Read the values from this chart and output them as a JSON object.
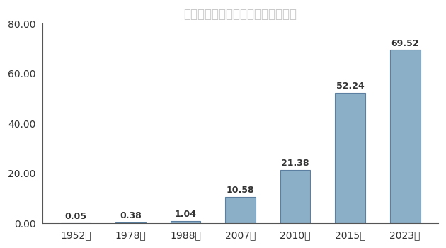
{
  "categories": [
    "1952年",
    "1978年",
    "1988年",
    "2007年",
    "2010年",
    "2015年",
    "2023年"
  ],
  "values": [
    0.05,
    0.38,
    1.04,
    10.58,
    21.38,
    52.24,
    69.52
  ],
  "bar_color": "#8cafc8",
  "bar_edge_color": "#5a7fa0",
  "title": "我国律师队伍规模发展历程（万人）",
  "title_color": "#c8c8c8",
  "title_fontsize": 12,
  "ylim": [
    0,
    80
  ],
  "yticks": [
    0.0,
    20.0,
    40.0,
    60.0,
    80.0
  ],
  "ytick_labels": [
    "0.00",
    "20.00",
    "40.00",
    "60.00",
    "80.00"
  ],
  "tick_fontsize": 10,
  "background_color": "#ffffff",
  "bar_width": 0.55,
  "value_label_fontsize": 9,
  "value_label_fontweight": "bold",
  "spine_color": "#555555",
  "label_color": "#333333"
}
